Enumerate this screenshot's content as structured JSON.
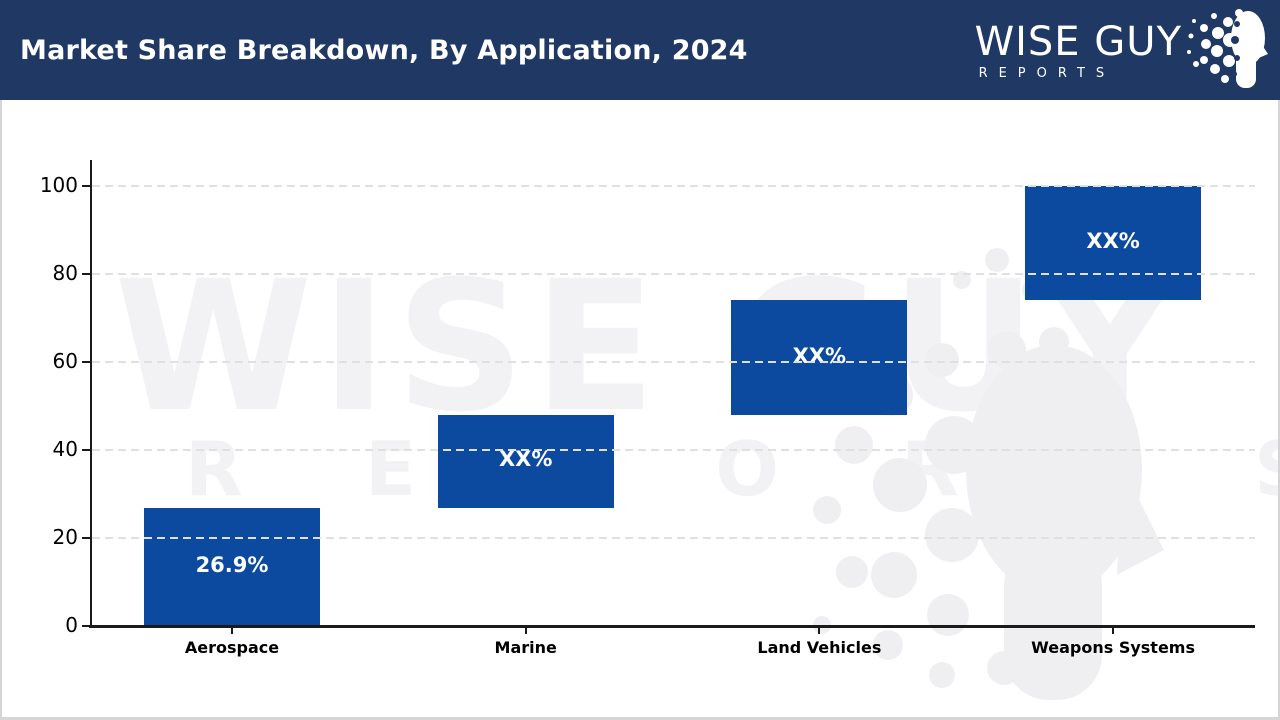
{
  "header": {
    "title": "Market Share Breakdown, By Application, 2024",
    "bg_color": "#1f3864",
    "logo": {
      "line1": "WISE GUY",
      "line2": "REPORTS"
    }
  },
  "watermark": {
    "line1": "WISE GUY",
    "line2": "R E P O R T S"
  },
  "chart_data": {
    "type": "bar",
    "variant": "floating-waterfall",
    "title": "Market Share Breakdown, By Application, 2024",
    "categories": [
      "Aerospace",
      "Marine",
      "Land Vehicles",
      "Weapons Systems"
    ],
    "series": [
      {
        "name": "Market Share",
        "segments": [
          {
            "category": "Aerospace",
            "start": 0,
            "end": 26.9,
            "value": 26.9,
            "label": "26.9%"
          },
          {
            "category": "Marine",
            "start": 26.9,
            "end": 48,
            "value": 21.1,
            "label": "XX%"
          },
          {
            "category": "Land Vehicles",
            "start": 48,
            "end": 74,
            "value": 26.0,
            "label": "XX%"
          },
          {
            "category": "Weapons Systems",
            "start": 74,
            "end": 100,
            "value": 26.0,
            "label": "XX%"
          }
        ]
      }
    ],
    "xlabel": "",
    "ylabel": "",
    "ylim": [
      0,
      106
    ],
    "yticks": [
      0,
      20,
      40,
      60,
      80,
      100
    ],
    "grid": "horizontal-dashed",
    "gridline_color": "#e0e0e0",
    "bar_color": "#0b4a9e",
    "bar_label_color": "#ffffff",
    "axis_color": "#1a1a1a",
    "legend": "none"
  }
}
